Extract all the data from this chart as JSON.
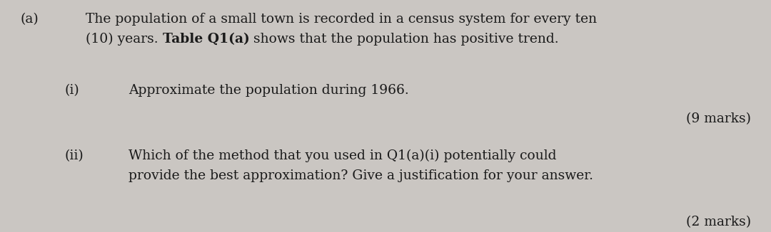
{
  "bg_color": "#cac6c2",
  "text_color": "#1a1a1a",
  "label_a": "(a)",
  "label_i": "(i)",
  "label_ii": "(ii)",
  "line1": "The population of a small town is recorded in a census system for every ten",
  "line2_start": "(10) years. ",
  "line2_bold": "Table Q1(a)",
  "line2_end": " shows that the population has positive trend.",
  "sub_i_text": "Approximate the population during 1966.",
  "marks_i": "(9 marks)",
  "sub_ii_line1": "Which of the method that you used in Q1(a)(i) potentially could",
  "sub_ii_line2": "provide the best approximation? Give a justification for your answer.",
  "marks_ii": "(2 marks)",
  "fontsize": 13.5,
  "font_family": "DejaVu Serif"
}
